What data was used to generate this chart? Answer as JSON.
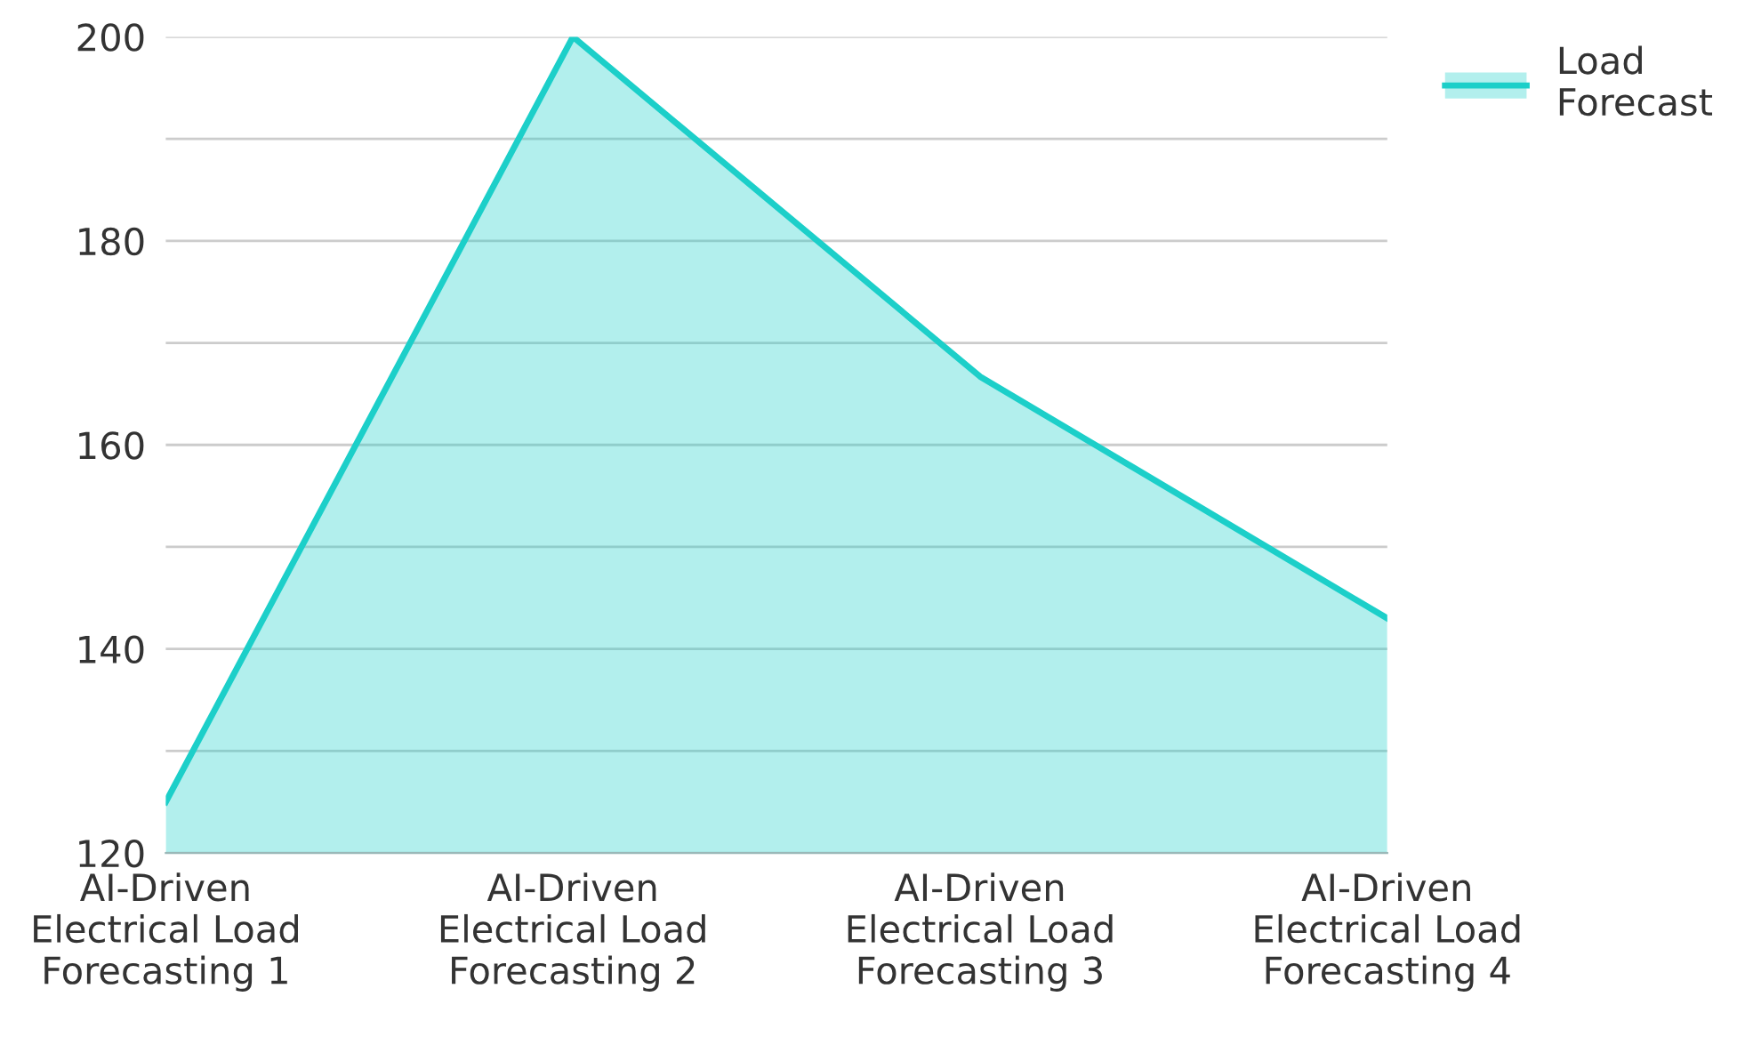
{
  "chart_data": {
    "type": "area",
    "categories": [
      "AI-Driven\nElectrical Load\nForecasting 1",
      "AI-Driven\nElectrical Load\nForecasting 2",
      "AI-Driven\nElectrical Load\nForecasting 3",
      "AI-Driven\nElectrical Load\nForecasting 4"
    ],
    "series": [
      {
        "name": "Load\nForecast",
        "color": "#1ccfc9",
        "values": [
          125,
          200,
          166.7,
          143
        ]
      }
    ],
    "ylim": [
      120,
      200
    ],
    "yticks": [
      120,
      {
        "value": 130,
        "label": null
      },
      140,
      {
        "value": 150,
        "label": null
      },
      160,
      {
        "value": 170,
        "label": null
      },
      180,
      {
        "value": 190,
        "label": null
      },
      200
    ],
    "grid": "y",
    "legend": "top right",
    "marker": "none",
    "line_style": "solid"
  }
}
